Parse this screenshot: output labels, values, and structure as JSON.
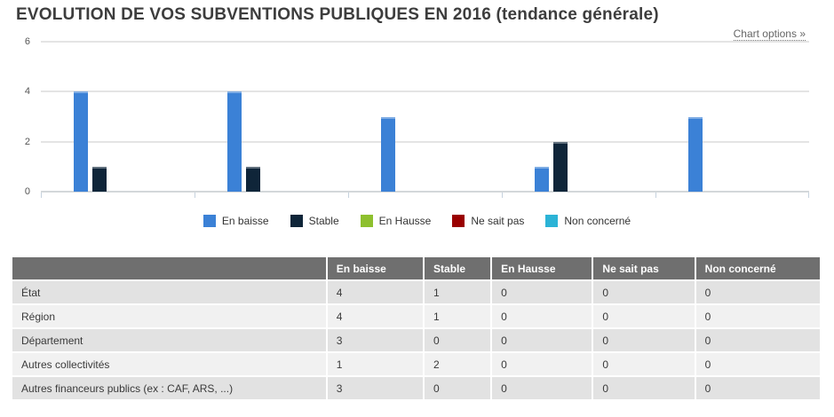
{
  "page": {
    "title": "EVOLUTION DE VOS SUBVENTIONS PUBLIQUES EN 2016 (tendance générale)",
    "chart_options_label": "Chart options »"
  },
  "chart_data": {
    "type": "bar",
    "title": "EVOLUTION DE VOS SUBVENTIONS PUBLIQUES EN 2016 (tendance générale)",
    "categories": [
      "État",
      "Région",
      "Département",
      "Autres collectivités",
      "Autres financeurs publics (ex : CAF, ARS, ...)"
    ],
    "series": [
      {
        "name": "En baisse",
        "color": "#3b81d6",
        "values": [
          4,
          4,
          3,
          1,
          3
        ]
      },
      {
        "name": "Stable",
        "color": "#0f2539",
        "values": [
          1,
          1,
          0,
          2,
          0
        ]
      },
      {
        "name": "En Hausse",
        "color": "#8ec02e",
        "values": [
          0,
          0,
          0,
          0,
          0
        ]
      },
      {
        "name": "Ne sait pas",
        "color": "#9a0000",
        "values": [
          0,
          0,
          0,
          0,
          0
        ]
      },
      {
        "name": "Non concerné",
        "color": "#2bb3d6",
        "values": [
          0,
          0,
          0,
          0,
          0
        ]
      }
    ],
    "xlabel": "",
    "ylabel": "",
    "ylim": [
      0,
      6
    ],
    "yticks": [
      0,
      2,
      4,
      6
    ],
    "grid": true,
    "legend_position": "bottom"
  },
  "table": {
    "columns": [
      "",
      "En baisse",
      "Stable",
      "En Hausse",
      "Ne sait pas",
      "Non concerné"
    ],
    "rows": [
      {
        "label": "État",
        "values": [
          4,
          1,
          0,
          0,
          0
        ]
      },
      {
        "label": "Région",
        "values": [
          4,
          1,
          0,
          0,
          0
        ]
      },
      {
        "label": "Département",
        "values": [
          3,
          0,
          0,
          0,
          0
        ]
      },
      {
        "label": "Autres collectivités",
        "values": [
          1,
          2,
          0,
          0,
          0
        ]
      },
      {
        "label": "Autres financeurs publics (ex : CAF, ARS, ...)",
        "values": [
          3,
          0,
          0,
          0,
          0
        ]
      }
    ]
  },
  "colors": {
    "title_text": "#3d3d3d",
    "header_bg": "#6f6f6f",
    "row_odd_bg": "#e2e2e2",
    "row_even_bg": "#f1f1f1",
    "gridline": "#e4e4e4"
  }
}
